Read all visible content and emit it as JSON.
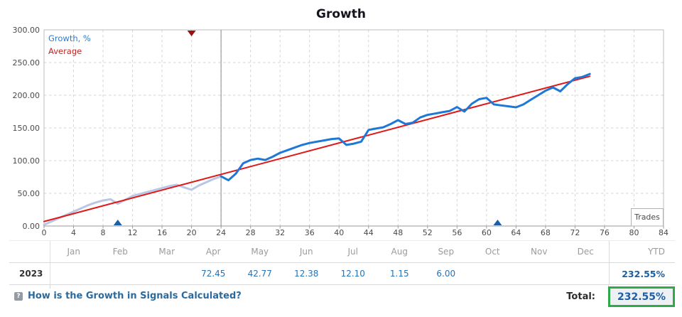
{
  "title": "Growth",
  "chart_data": {
    "type": "line",
    "title": "Growth",
    "x_axis_label": "Trades",
    "xlabel": "Trades",
    "ylabel": "Growth, %",
    "xlim": [
      0,
      84
    ],
    "ylim": [
      0,
      300
    ],
    "grid": true,
    "x_ticks": [
      0,
      4,
      8,
      12,
      16,
      20,
      24,
      28,
      32,
      36,
      40,
      44,
      48,
      52,
      56,
      60,
      64,
      68,
      72,
      76,
      80,
      84
    ],
    "x_tick_labels": [
      "0",
      "4",
      "8",
      "12",
      "16",
      "20",
      "24",
      "28",
      "32",
      "36",
      "40",
      "44",
      "48",
      "52",
      "56",
      "60",
      "64",
      "68",
      "72",
      "76",
      "80",
      "84"
    ],
    "y_ticks": [
      0,
      50,
      100,
      150,
      200,
      250,
      300
    ],
    "y_tick_labels": [
      "0.00",
      "50.00",
      "100.00",
      "150.00",
      "200.00",
      "250.00",
      "300.00"
    ],
    "legend_position": "top-left",
    "legend": [
      {
        "label": "Growth, %",
        "color": "#2e7bc8"
      },
      {
        "label": "Average",
        "color": "#cc2222"
      }
    ],
    "period_separator_x": 24,
    "series": [
      {
        "name": "Growth (earlier period), %",
        "color": "#b9c7e4",
        "width": 3,
        "points": [
          [
            0,
            2
          ],
          [
            1,
            7
          ],
          [
            2,
            12
          ],
          [
            3,
            17
          ],
          [
            4,
            22
          ],
          [
            5,
            27
          ],
          [
            6,
            32
          ],
          [
            7,
            36
          ],
          [
            8,
            39
          ],
          [
            9,
            41
          ],
          [
            10,
            34
          ],
          [
            11,
            40
          ],
          [
            12,
            46
          ],
          [
            13,
            49
          ],
          [
            14,
            52
          ],
          [
            15,
            55
          ],
          [
            16,
            58
          ],
          [
            17,
            61
          ],
          [
            18,
            63
          ],
          [
            19,
            59
          ],
          [
            20,
            55.5
          ],
          [
            21,
            62
          ],
          [
            22,
            67
          ],
          [
            23,
            72
          ],
          [
            24,
            76
          ]
        ]
      },
      {
        "name": "Average",
        "color": "#e01818",
        "width": 2,
        "points": [
          [
            0,
            7
          ],
          [
            74,
            229
          ]
        ]
      },
      {
        "name": "Growth, %",
        "color": "#1e78d8",
        "width": 3,
        "points": [
          [
            24,
            76
          ],
          [
            25,
            70
          ],
          [
            26,
            80
          ],
          [
            27,
            96
          ],
          [
            28,
            101
          ],
          [
            29,
            103
          ],
          [
            30,
            101
          ],
          [
            31,
            106
          ],
          [
            32,
            112
          ],
          [
            33,
            116
          ],
          [
            34,
            120
          ],
          [
            35,
            124
          ],
          [
            36,
            127
          ],
          [
            37,
            129
          ],
          [
            38,
            131
          ],
          [
            39,
            133
          ],
          [
            40,
            134
          ],
          [
            41,
            124
          ],
          [
            42,
            126
          ],
          [
            43,
            129
          ],
          [
            44,
            147
          ],
          [
            45,
            149
          ],
          [
            46,
            151
          ],
          [
            47,
            156
          ],
          [
            48,
            162
          ],
          [
            49,
            156
          ],
          [
            50,
            158
          ],
          [
            51,
            166
          ],
          [
            52,
            170
          ],
          [
            53,
            172
          ],
          [
            54,
            174
          ],
          [
            55,
            176
          ],
          [
            56,
            182
          ],
          [
            57,
            175
          ],
          [
            58,
            187
          ],
          [
            59,
            194
          ],
          [
            60,
            196
          ],
          [
            61,
            186
          ],
          [
            62,
            184.5
          ],
          [
            63,
            183
          ],
          [
            64,
            181.5
          ],
          [
            65,
            186
          ],
          [
            66,
            193
          ],
          [
            67,
            200
          ],
          [
            68,
            207
          ],
          [
            69,
            212
          ],
          [
            70,
            206
          ],
          [
            71,
            217
          ],
          [
            72,
            226
          ],
          [
            73,
            228
          ],
          [
            74,
            232.55
          ]
        ]
      }
    ],
    "markers": [
      {
        "kind": "withdrawal",
        "shape": "triangle-down",
        "edge": "top",
        "color": "#9e1111",
        "x": 20
      },
      {
        "kind": "deposit",
        "shape": "triangle-up",
        "edge": "bottom",
        "color": "#1b5fa5",
        "x": 10
      },
      {
        "kind": "deposit",
        "shape": "triangle-up",
        "edge": "bottom",
        "color": "#1b5fa5",
        "x": 61.5
      }
    ]
  },
  "table": {
    "months": [
      "Jan",
      "Feb",
      "Mar",
      "Apr",
      "May",
      "Jun",
      "Jul",
      "Aug",
      "Sep",
      "Oct",
      "Nov",
      "Dec"
    ],
    "ytd_label": "YTD",
    "rows": [
      {
        "year": "2023",
        "values": [
          "",
          "",
          "",
          "72.45",
          "42.77",
          "12.38",
          "12.10",
          "1.15",
          "6.00",
          "",
          "",
          ""
        ],
        "ytd": "232.55%"
      }
    ]
  },
  "footer": {
    "help_link": "How is the Growth in Signals Calculated?",
    "help_icon_glyph": "?",
    "total_label": "Total:",
    "total_value": "232.55%",
    "total_box_color": "#2faa4a"
  }
}
